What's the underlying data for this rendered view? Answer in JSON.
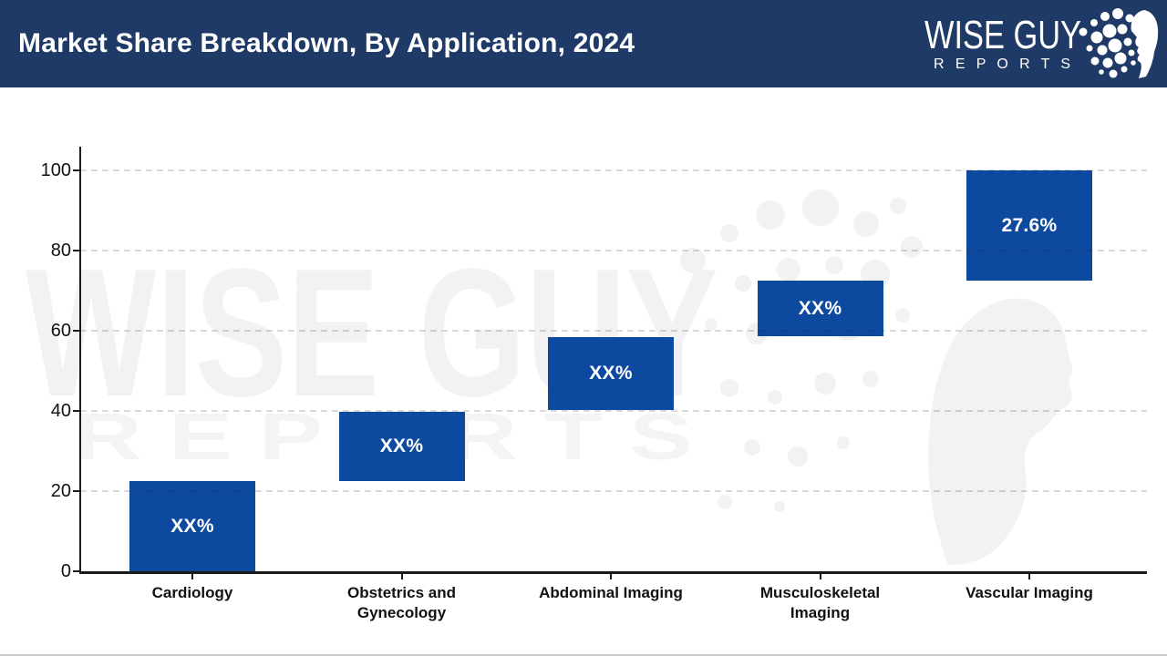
{
  "header": {
    "title": "Market Share Breakdown, By Application, 2024",
    "background_color": "#1f3a66"
  },
  "brand": {
    "name_top": "WISE GUY",
    "name_bottom": "R E P O R T S"
  },
  "watermark": {
    "line1": "WISE GUY",
    "line2": "R E P O R T S"
  },
  "chart_data": {
    "type": "bar",
    "subtype": "waterfall",
    "title": "Market Share Breakdown, By Application, 2024",
    "categories": [
      "Cardiology",
      "Obstetrics and Gynecology",
      "Abdominal Imaging",
      "Musculoskeletal Imaging",
      "Vascular Imaging"
    ],
    "bars": [
      {
        "category": "Cardiology",
        "label": "XX%",
        "start": 0,
        "end": 22.4,
        "value_shown": "XX%"
      },
      {
        "category": "Obstetrics and Gynecology",
        "label": "XX%",
        "start": 22.4,
        "end": 39.8,
        "value_shown": "XX%"
      },
      {
        "category": "Abdominal Imaging",
        "label": "XX%",
        "start": 40.3,
        "end": 58.5,
        "value_shown": "XX%"
      },
      {
        "category": "Musculoskeletal Imaging",
        "label": "XX%",
        "start": 58.6,
        "end": 72.4,
        "value_shown": "XX%"
      },
      {
        "category": "Vascular Imaging",
        "label": "27.6%",
        "start": 72.4,
        "end": 100,
        "value_shown": "27.6%"
      }
    ],
    "yticks": [
      0,
      20,
      40,
      60,
      80,
      100
    ],
    "ylim": [
      0,
      105
    ],
    "xlabel": "",
    "ylabel": "",
    "grid": "horizontal-dashed",
    "legend": "none",
    "bar_color": "#0d4a9f",
    "bar_label_color": "#ffffff",
    "axis_color": "#1a1a1a"
  }
}
